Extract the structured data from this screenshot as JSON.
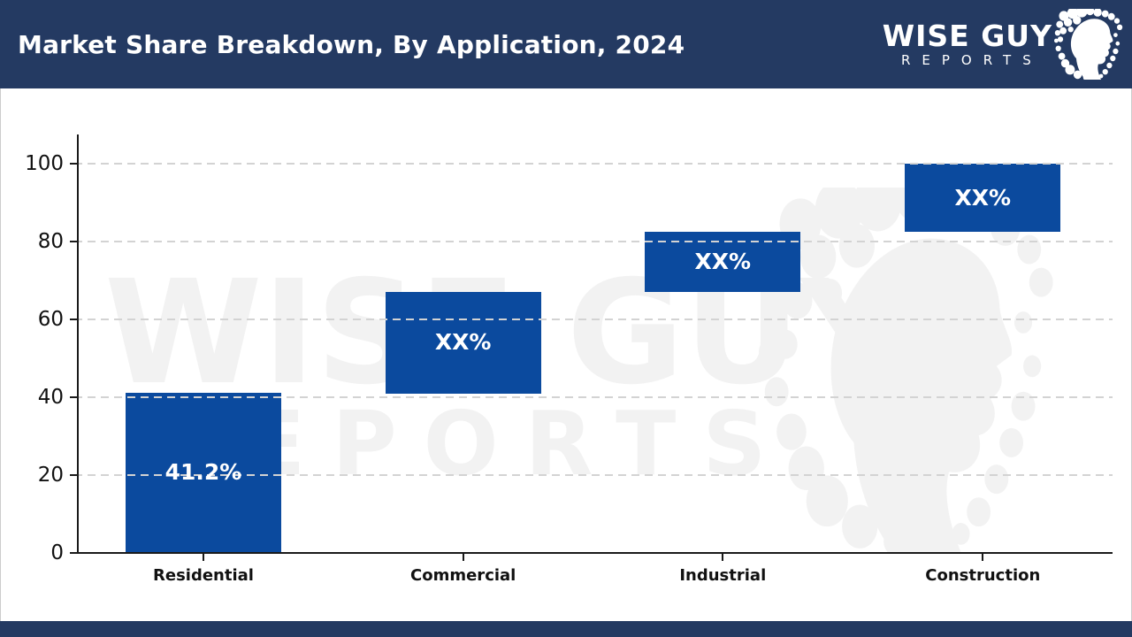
{
  "header": {
    "title": "Market Share Breakdown, By Application, 2024",
    "logo": {
      "line1": "WISE GUY",
      "line2": "REPORTS"
    }
  },
  "watermark": {
    "line1": "WISE GUY",
    "line2": "REPORTS"
  },
  "chart_data": {
    "type": "bar",
    "subtype": "waterfall",
    "title": "Market Share Breakdown, By Application, 2024",
    "categories": [
      "Residential",
      "Commercial",
      "Industrial",
      "Construction"
    ],
    "series": [
      {
        "name": "Market Share",
        "segments": [
          {
            "category": "Residential",
            "start": 0,
            "end": 41.2,
            "label": "41.2%"
          },
          {
            "category": "Commercial",
            "start": 41,
            "end": 67,
            "label": "XX%"
          },
          {
            "category": "Industrial",
            "start": 67,
            "end": 82.5,
            "label": "XX%"
          },
          {
            "category": "Construction",
            "start": 82.5,
            "end": 100,
            "label": "XX%"
          }
        ]
      }
    ],
    "xlabel": "",
    "ylabel": "",
    "ylim": [
      0,
      100
    ],
    "yticks": [
      0,
      20,
      40,
      60,
      80,
      100
    ],
    "grid": {
      "horizontal": true,
      "style": "dashed"
    },
    "legend": {
      "visible": false
    },
    "colors": {
      "bar": "#0b4a9e",
      "bar_label": "#ffffff",
      "grid": "#d3d3d3",
      "axis": "#1a1a1a",
      "tick_label": "#111111",
      "header_bg": "#243a62",
      "footer_bg": "#243a62",
      "watermark": "#f2f2f2"
    }
  }
}
